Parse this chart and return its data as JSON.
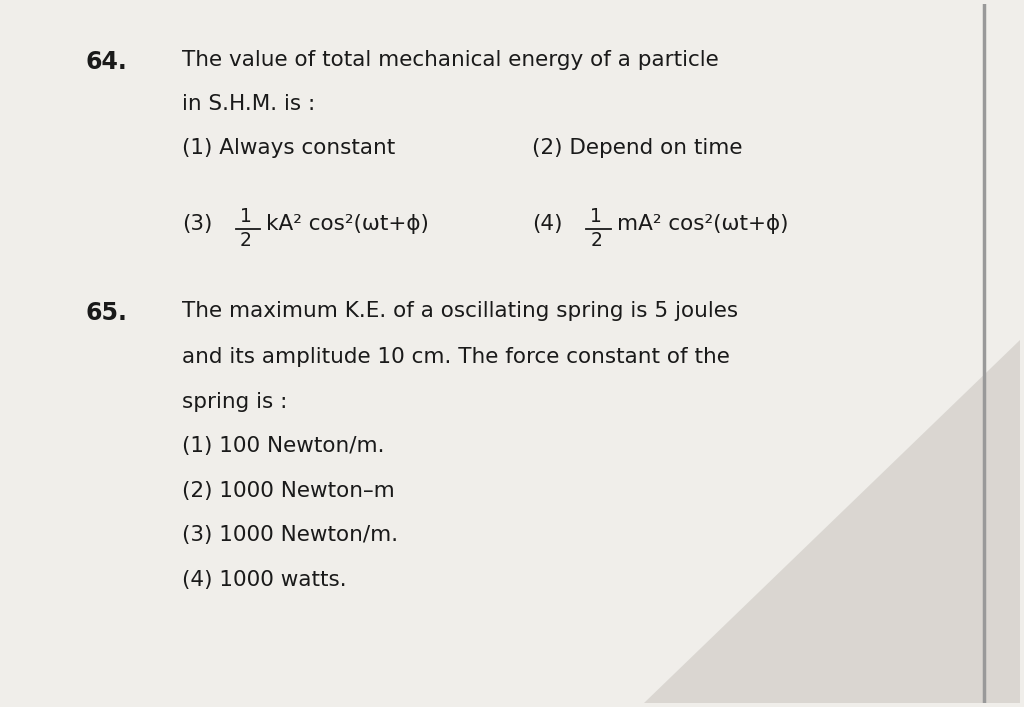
{
  "bg_color": "#f0eeea",
  "text_color": "#1a1a1a",
  "fig_width": 10.24,
  "fig_height": 7.07,
  "q64_number": "64.",
  "q64_line1": "The value of total mechanical energy of a particle",
  "q64_line2": "in S.H.M. is :",
  "q64_opt1": "(1) Always constant",
  "q64_opt2": "(2) Depend on time",
  "q64_opt3_prefix": "(3)",
  "q64_opt3_suffix": "kA² cos²(ωt+ϕ)",
  "q64_opt4_prefix": "(4)",
  "q64_opt4_suffix": "mA² cos²(ωt+ϕ)",
  "q65_number": "65.",
  "q65_line1": "The maximum K.E. of a oscillating spring is 5 joules",
  "q65_line2": "and its amplitude 10 cm. The force constant of the",
  "q65_line3": "spring is :",
  "q65_opt1": "(1) 100 Newton/m.",
  "q65_opt2": "(2) 1000 Newton–m",
  "q65_opt3": "(3) 1000 Newton/m.",
  "q65_opt4": "(4) 1000 watts.",
  "font_family": "DejaVu Sans",
  "main_fontsize": 15.5,
  "number_fontsize": 17,
  "watermark_color": "#c8c4be",
  "border_color": "#999999"
}
